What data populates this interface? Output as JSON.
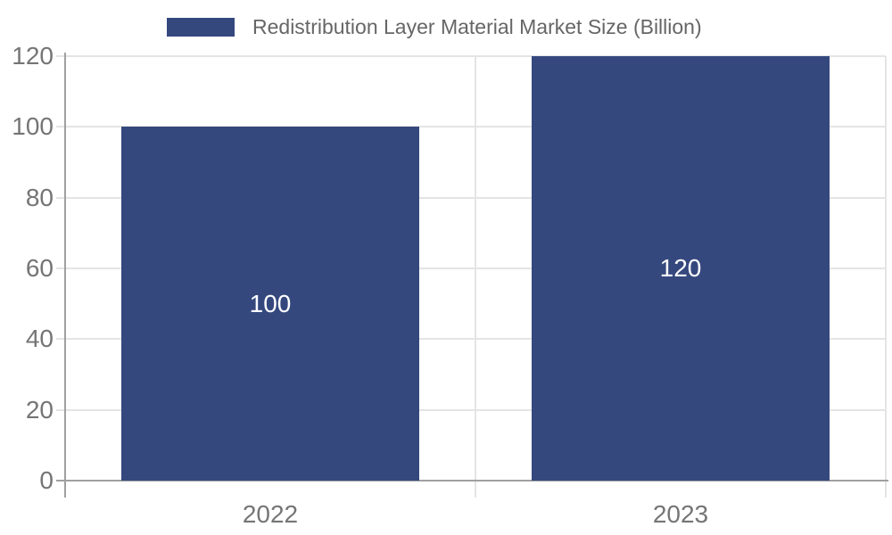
{
  "chart_data": {
    "type": "bar",
    "title": "Redistribution Layer Material Market Size (Billion)",
    "categories": [
      "2022",
      "2023"
    ],
    "values": [
      100,
      120
    ],
    "bar_value_labels": [
      "100",
      "120"
    ],
    "xlabel": "",
    "ylabel": "",
    "ylim": [
      0,
      120
    ],
    "yticks": [
      0,
      20,
      40,
      60,
      80,
      100,
      120
    ],
    "ytick_labels": [
      "0",
      "20",
      "40",
      "60",
      "80",
      "100",
      "120"
    ],
    "grid": true,
    "legend_position": "top",
    "colors": {
      "bar": "#35487E",
      "bar_label": "#FFFFFF",
      "grid": "#E4E4E4",
      "axis": "#A0A0A0",
      "tick_label": "#757575",
      "legend_text": "#666666"
    }
  }
}
